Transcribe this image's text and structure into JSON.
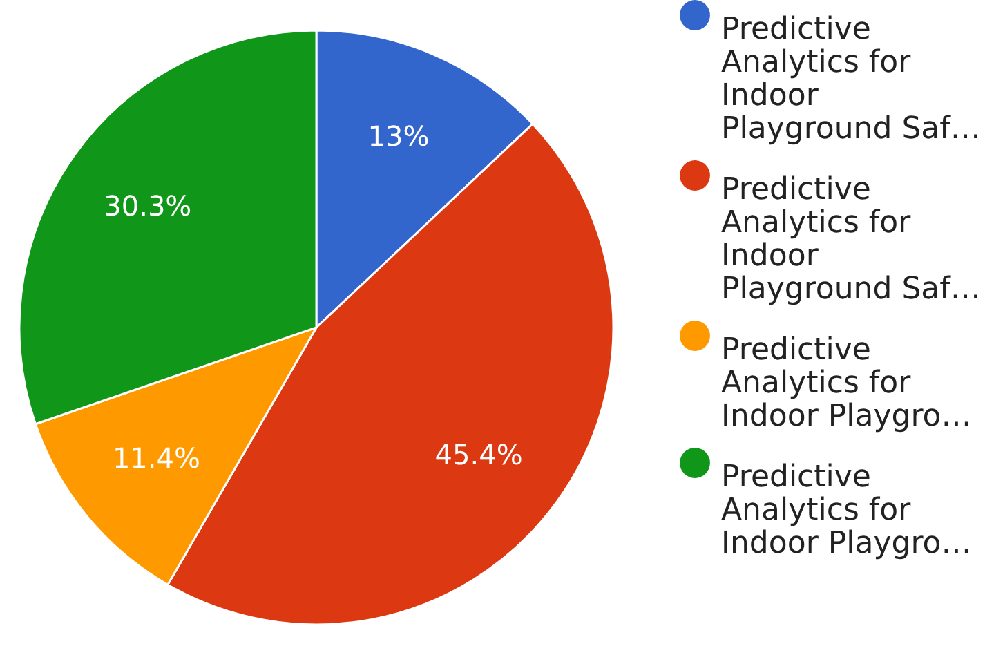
{
  "chart_data": {
    "type": "pie",
    "categories": [
      "Predictive Analytics for Indoor Playground Saf…",
      "Predictive Analytics for Indoor Playground Saf…",
      "Predictive Analytics for Indoor Playgro…",
      "Predictive Analytics for Indoor Playgro…"
    ],
    "values": [
      13,
      45.4,
      11.4,
      30.3
    ],
    "colors": [
      "#3366cc",
      "#dc3912",
      "#ff9900",
      "#109618"
    ],
    "value_labels": [
      "13%",
      "45.4%",
      "11.4%",
      "30.3%"
    ],
    "legend": "right"
  }
}
